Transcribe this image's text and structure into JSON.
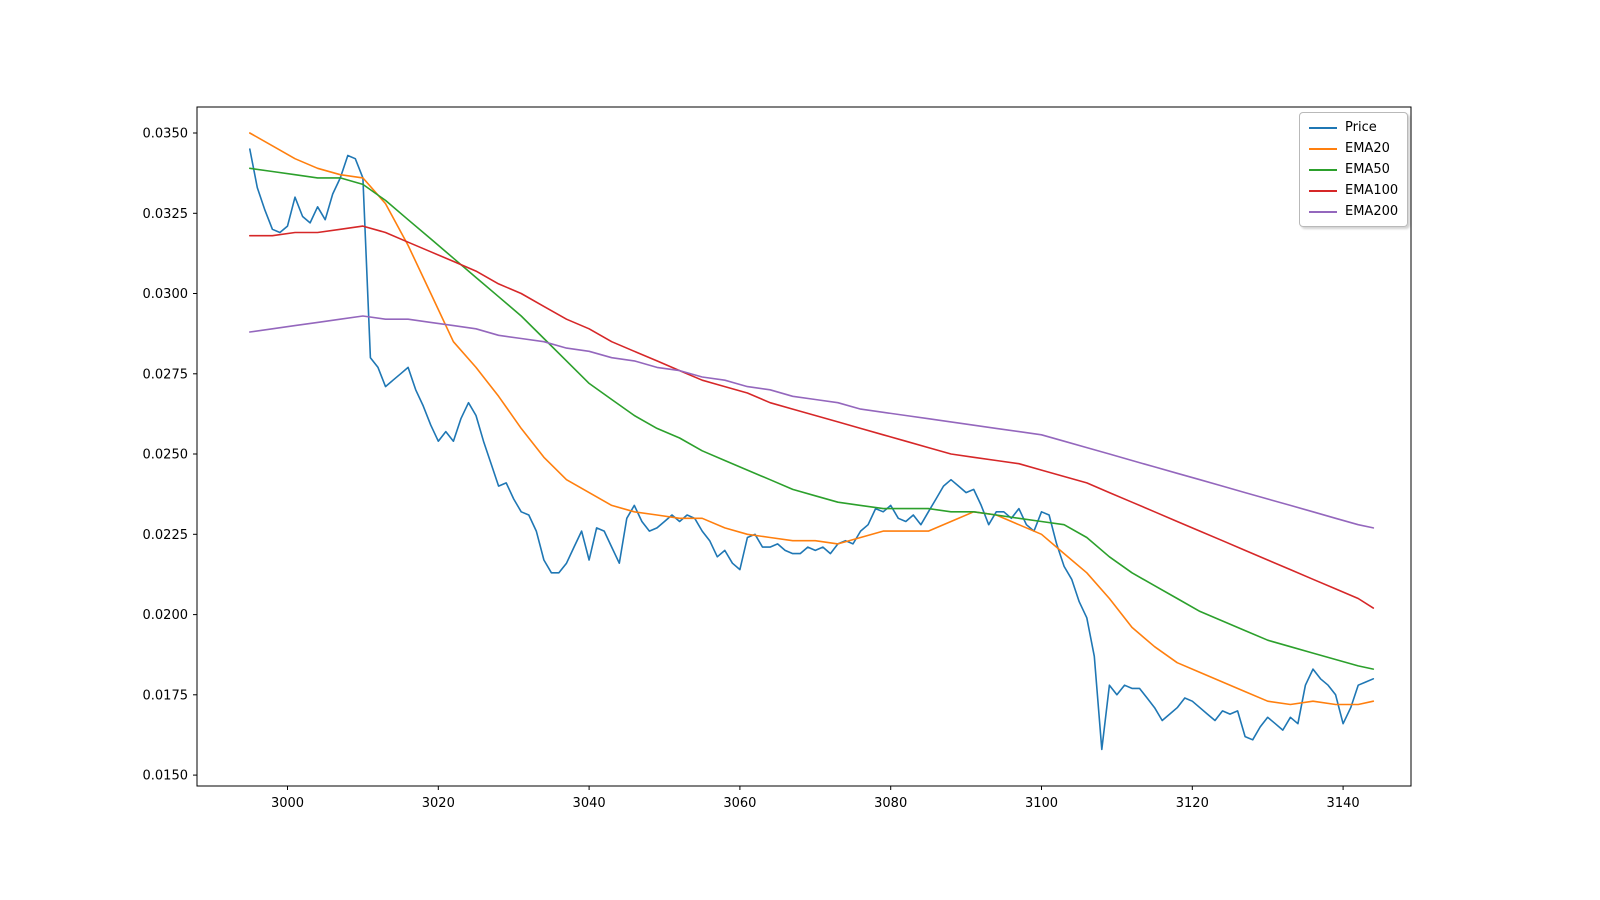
{
  "chart_data": {
    "type": "line",
    "title": "",
    "xlabel": "",
    "ylabel": "",
    "grid": false,
    "legend_position": "upper right",
    "xlim": [
      2988,
      3149
    ],
    "ylim": [
      0.01466,
      0.03581
    ],
    "xticks": [
      3000,
      3020,
      3040,
      3060,
      3080,
      3100,
      3120,
      3140
    ],
    "yticks": [
      0.015,
      0.0175,
      0.02,
      0.0225,
      0.025,
      0.0275,
      0.03,
      0.0325,
      0.035
    ],
    "series": [
      {
        "name": "Price",
        "color": "#1f77b4",
        "x0": 2995,
        "dx": 1,
        "y": [
          0.0345,
          0.0333,
          0.0326,
          0.032,
          0.0319,
          0.0321,
          0.033,
          0.0324,
          0.0322,
          0.0327,
          0.0323,
          0.0331,
          0.0336,
          0.0343,
          0.0342,
          0.0336,
          0.028,
          0.0277,
          0.0271,
          0.0273,
          0.0275,
          0.0277,
          0.027,
          0.0265,
          0.0259,
          0.0254,
          0.0257,
          0.0254,
          0.0261,
          0.0266,
          0.0262,
          0.0254,
          0.0247,
          0.024,
          0.0241,
          0.0236,
          0.0232,
          0.0231,
          0.0226,
          0.0217,
          0.0213,
          0.0213,
          0.0216,
          0.0221,
          0.0226,
          0.0217,
          0.0227,
          0.0226,
          0.0221,
          0.0216,
          0.023,
          0.0234,
          0.0229,
          0.0226,
          0.0227,
          0.0229,
          0.0231,
          0.0229,
          0.0231,
          0.023,
          0.0226,
          0.0223,
          0.0218,
          0.022,
          0.0216,
          0.0214,
          0.0224,
          0.0225,
          0.0221,
          0.0221,
          0.0222,
          0.022,
          0.0219,
          0.0219,
          0.0221,
          0.022,
          0.0221,
          0.0219,
          0.0222,
          0.0223,
          0.0222,
          0.0226,
          0.0228,
          0.0233,
          0.0232,
          0.0234,
          0.023,
          0.0229,
          0.0231,
          0.0228,
          0.0232,
          0.0236,
          0.024,
          0.0242,
          0.024,
          0.0238,
          0.0239,
          0.0234,
          0.0228,
          0.0232,
          0.0232,
          0.023,
          0.0233,
          0.0228,
          0.0226,
          0.0232,
          0.0231,
          0.0222,
          0.0215,
          0.0211,
          0.0204,
          0.0199,
          0.0187,
          0.0158,
          0.0178,
          0.0175,
          0.0178,
          0.0177,
          0.0177,
          0.0174,
          0.0171,
          0.0167,
          0.0169,
          0.0171,
          0.0174,
          0.0173,
          0.0171,
          0.0169,
          0.0167,
          0.017,
          0.0169,
          0.017,
          0.0162,
          0.0161,
          0.0165,
          0.0168,
          0.0166,
          0.0164,
          0.0168,
          0.0166,
          0.0178,
          0.0183,
          0.018,
          0.0178,
          0.0175,
          0.0166,
          0.0171,
          0.0178,
          0.0179,
          0.018
        ]
      },
      {
        "name": "EMA20",
        "color": "#ff7f0e",
        "x": [
          2995,
          2998,
          3001,
          3004,
          3007,
          3010,
          3013,
          3016,
          3019,
          3022,
          3025,
          3028,
          3031,
          3034,
          3037,
          3040,
          3043,
          3046,
          3049,
          3052,
          3055,
          3058,
          3061,
          3064,
          3067,
          3070,
          3073,
          3076,
          3079,
          3082,
          3085,
          3088,
          3091,
          3094,
          3097,
          3100,
          3103,
          3106,
          3109,
          3112,
          3115,
          3118,
          3121,
          3124,
          3127,
          3130,
          3133,
          3136,
          3139,
          3142,
          3144
        ],
        "y": [
          0.035,
          0.0346,
          0.0342,
          0.0339,
          0.0337,
          0.0336,
          0.0328,
          0.0315,
          0.03,
          0.0285,
          0.0277,
          0.0268,
          0.0258,
          0.0249,
          0.0242,
          0.0238,
          0.0234,
          0.0232,
          0.0231,
          0.023,
          0.023,
          0.0227,
          0.0225,
          0.0224,
          0.0223,
          0.0223,
          0.0222,
          0.0224,
          0.0226,
          0.0226,
          0.0226,
          0.0229,
          0.0232,
          0.0231,
          0.0228,
          0.0225,
          0.0219,
          0.0213,
          0.0205,
          0.0196,
          0.019,
          0.0185,
          0.0182,
          0.0179,
          0.0176,
          0.0173,
          0.0172,
          0.0173,
          0.0172,
          0.0172,
          0.0173
        ]
      },
      {
        "name": "EMA50",
        "color": "#2ca02c",
        "x": [
          2995,
          2998,
          3001,
          3004,
          3007,
          3010,
          3013,
          3016,
          3019,
          3022,
          3025,
          3028,
          3031,
          3034,
          3037,
          3040,
          3043,
          3046,
          3049,
          3052,
          3055,
          3058,
          3061,
          3064,
          3067,
          3070,
          3073,
          3076,
          3079,
          3082,
          3085,
          3088,
          3091,
          3094,
          3097,
          3100,
          3103,
          3106,
          3109,
          3112,
          3115,
          3118,
          3121,
          3124,
          3127,
          3130,
          3133,
          3136,
          3139,
          3142,
          3144
        ],
        "y": [
          0.0339,
          0.0338,
          0.0337,
          0.0336,
          0.0336,
          0.0334,
          0.0329,
          0.0323,
          0.0317,
          0.0311,
          0.0305,
          0.0299,
          0.0293,
          0.0286,
          0.0279,
          0.0272,
          0.0267,
          0.0262,
          0.0258,
          0.0255,
          0.0251,
          0.0248,
          0.0245,
          0.0242,
          0.0239,
          0.0237,
          0.0235,
          0.0234,
          0.0233,
          0.0233,
          0.0233,
          0.0232,
          0.0232,
          0.0231,
          0.023,
          0.0229,
          0.0228,
          0.0224,
          0.0218,
          0.0213,
          0.0209,
          0.0205,
          0.0201,
          0.0198,
          0.0195,
          0.0192,
          0.019,
          0.0188,
          0.0186,
          0.0184,
          0.0183
        ]
      },
      {
        "name": "EMA100",
        "color": "#d62728",
        "x": [
          2995,
          2998,
          3001,
          3004,
          3007,
          3010,
          3013,
          3016,
          3019,
          3022,
          3025,
          3028,
          3031,
          3034,
          3037,
          3040,
          3043,
          3046,
          3049,
          3052,
          3055,
          3058,
          3061,
          3064,
          3067,
          3070,
          3073,
          3076,
          3079,
          3082,
          3085,
          3088,
          3091,
          3094,
          3097,
          3100,
          3103,
          3106,
          3109,
          3112,
          3115,
          3118,
          3121,
          3124,
          3127,
          3130,
          3133,
          3136,
          3139,
          3142,
          3144
        ],
        "y": [
          0.0318,
          0.0318,
          0.0319,
          0.0319,
          0.032,
          0.0321,
          0.0319,
          0.0316,
          0.0313,
          0.031,
          0.0307,
          0.0303,
          0.03,
          0.0296,
          0.0292,
          0.0289,
          0.0285,
          0.0282,
          0.0279,
          0.0276,
          0.0273,
          0.0271,
          0.0269,
          0.0266,
          0.0264,
          0.0262,
          0.026,
          0.0258,
          0.0256,
          0.0254,
          0.0252,
          0.025,
          0.0249,
          0.0248,
          0.0247,
          0.0245,
          0.0243,
          0.0241,
          0.0238,
          0.0235,
          0.0232,
          0.0229,
          0.0226,
          0.0223,
          0.022,
          0.0217,
          0.0214,
          0.0211,
          0.0208,
          0.0205,
          0.0202
        ]
      },
      {
        "name": "EMA200",
        "color": "#9467bd",
        "x": [
          2995,
          2998,
          3001,
          3004,
          3007,
          3010,
          3013,
          3016,
          3019,
          3022,
          3025,
          3028,
          3031,
          3034,
          3037,
          3040,
          3043,
          3046,
          3049,
          3052,
          3055,
          3058,
          3061,
          3064,
          3067,
          3070,
          3073,
          3076,
          3079,
          3082,
          3085,
          3088,
          3091,
          3094,
          3097,
          3100,
          3103,
          3106,
          3109,
          3112,
          3115,
          3118,
          3121,
          3124,
          3127,
          3130,
          3133,
          3136,
          3139,
          3142,
          3144
        ],
        "y": [
          0.0288,
          0.0289,
          0.029,
          0.0291,
          0.0292,
          0.0293,
          0.0292,
          0.0292,
          0.0291,
          0.029,
          0.0289,
          0.0287,
          0.0286,
          0.0285,
          0.0283,
          0.0282,
          0.028,
          0.0279,
          0.0277,
          0.0276,
          0.0274,
          0.0273,
          0.0271,
          0.027,
          0.0268,
          0.0267,
          0.0266,
          0.0264,
          0.0263,
          0.0262,
          0.0261,
          0.026,
          0.0259,
          0.0258,
          0.0257,
          0.0256,
          0.0254,
          0.0252,
          0.025,
          0.0248,
          0.0246,
          0.0244,
          0.0242,
          0.024,
          0.0238,
          0.0236,
          0.0234,
          0.0232,
          0.023,
          0.0228,
          0.0227
        ]
      }
    ],
    "legend_labels": [
      "Price",
      "EMA20",
      "EMA50",
      "EMA100",
      "EMA200"
    ]
  }
}
